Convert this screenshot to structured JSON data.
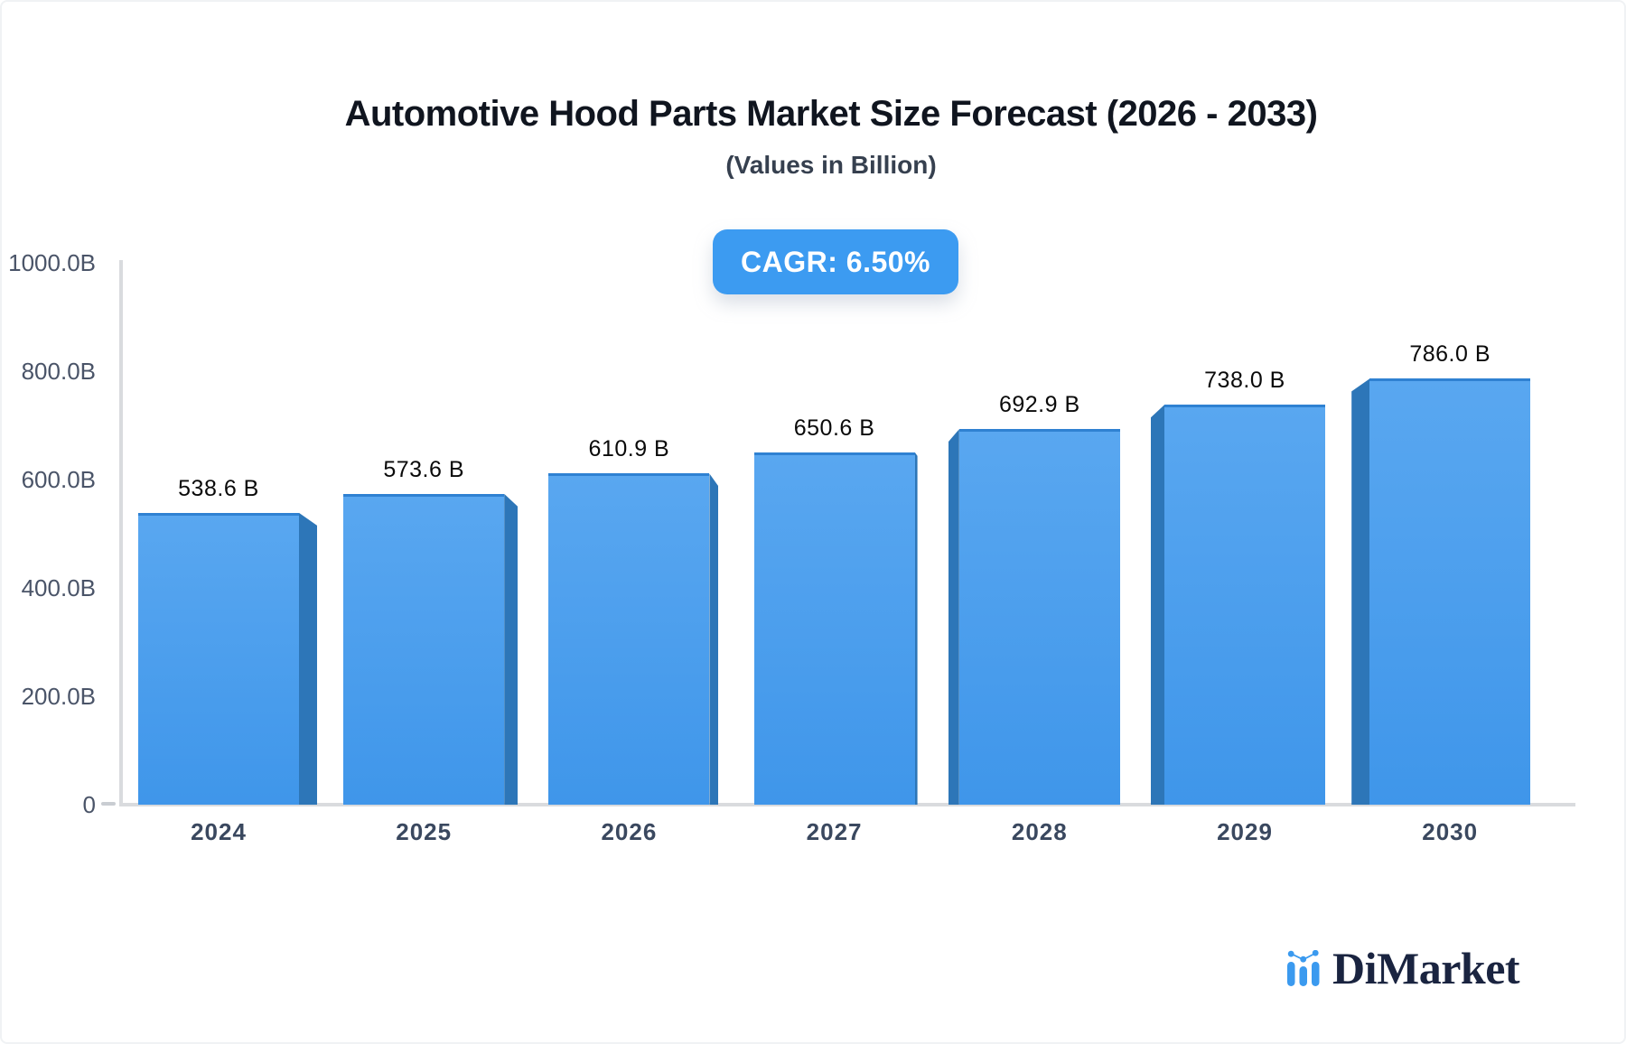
{
  "header": {
    "title": "Automotive Hood Parts Market Size Forecast (2026 - 2033)",
    "subtitle": "(Values in Billion)",
    "cagr_badge": "CAGR: 6.50%"
  },
  "chart_data": {
    "type": "bar",
    "title": "Automotive Hood Parts Market Size Forecast (2026 - 2033)",
    "subtitle": "(Values in Billion)",
    "cagr_percent": "6.50%",
    "categories": [
      "2024",
      "2025",
      "2026",
      "2027",
      "2028",
      "2029",
      "2030"
    ],
    "values": [
      538.6,
      573.6,
      610.9,
      650.6,
      692.9,
      738.0,
      786.0
    ],
    "value_labels": [
      "538.6 B",
      "573.6 B",
      "610.9 B",
      "650.6 B",
      "692.9 B",
      "738.0 B",
      "786.0 B"
    ],
    "unit": "Billion",
    "xlabel": "",
    "ylabel": "",
    "y_ticks": [
      {
        "label": "1000.0B",
        "value": 1000
      },
      {
        "label": "800.0B",
        "value": 800
      },
      {
        "label": "600.0B",
        "value": 600
      },
      {
        "label": "400.0B",
        "value": 400
      },
      {
        "label": "200.0B",
        "value": 200
      },
      {
        "label": "0",
        "value": 0
      }
    ],
    "ylim": [
      0,
      1000
    ],
    "grid": false,
    "legend": "none",
    "bar_style": "3d-perspective",
    "colors": {
      "bar_top": "#59A7F0",
      "bar_bottom": "#3F96EA",
      "bar_side": "#2D76B8",
      "bar_top_edge": "#2F81D2",
      "badge_bg": "#3C9BF1",
      "axis": "#D9DBDE",
      "tick_text": "#4A5468",
      "year_text": "#3A485F",
      "value_text": "#0A0A0A",
      "logo_navy": "#1A2440",
      "logo_blue": "#3B9AEF"
    }
  },
  "branding": {
    "logo_text": "DiMarket"
  }
}
